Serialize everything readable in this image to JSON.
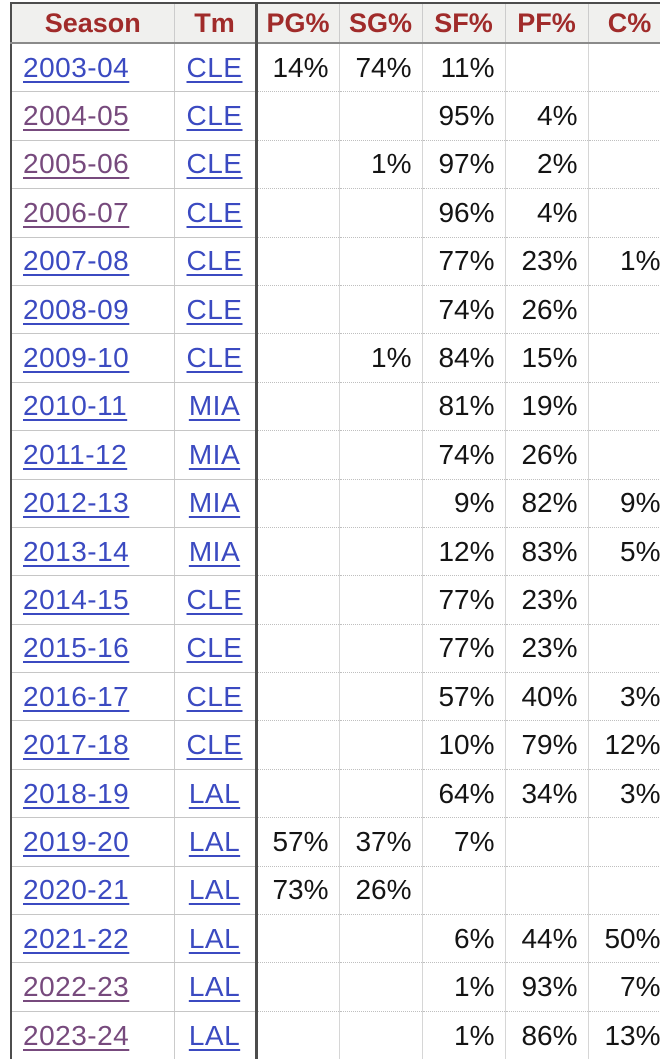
{
  "colors": {
    "header_text": "#a02b2a",
    "header_background": "#f0f0ee",
    "link_blue": "#3b4ac1",
    "link_visited_purple": "#774a7d",
    "thick_divider": "#4d4d4d",
    "stat_text": "#141414"
  },
  "table": {
    "columns": [
      {
        "key": "season",
        "label": "Season"
      },
      {
        "key": "team",
        "label": "Tm"
      },
      {
        "key": "pg",
        "label": "PG%"
      },
      {
        "key": "sg",
        "label": "SG%"
      },
      {
        "key": "sf",
        "label": "SF%"
      },
      {
        "key": "pf",
        "label": "PF%"
      },
      {
        "key": "c",
        "label": "C%"
      }
    ],
    "rows": [
      {
        "season": "2003-04",
        "visited": false,
        "team": "CLE",
        "pg": "14%",
        "sg": "74%",
        "sf": "11%",
        "pf": "",
        "c": ""
      },
      {
        "season": "2004-05",
        "visited": true,
        "team": "CLE",
        "pg": "",
        "sg": "",
        "sf": "95%",
        "pf": "4%",
        "c": ""
      },
      {
        "season": "2005-06",
        "visited": true,
        "team": "CLE",
        "pg": "",
        "sg": "1%",
        "sf": "97%",
        "pf": "2%",
        "c": ""
      },
      {
        "season": "2006-07",
        "visited": true,
        "team": "CLE",
        "pg": "",
        "sg": "",
        "sf": "96%",
        "pf": "4%",
        "c": ""
      },
      {
        "season": "2007-08",
        "visited": false,
        "team": "CLE",
        "pg": "",
        "sg": "",
        "sf": "77%",
        "pf": "23%",
        "c": "1%"
      },
      {
        "season": "2008-09",
        "visited": false,
        "team": "CLE",
        "pg": "",
        "sg": "",
        "sf": "74%",
        "pf": "26%",
        "c": ""
      },
      {
        "season": "2009-10",
        "visited": false,
        "team": "CLE",
        "pg": "",
        "sg": "1%",
        "sf": "84%",
        "pf": "15%",
        "c": ""
      },
      {
        "season": "2010-11",
        "visited": false,
        "team": "MIA",
        "pg": "",
        "sg": "",
        "sf": "81%",
        "pf": "19%",
        "c": ""
      },
      {
        "season": "2011-12",
        "visited": false,
        "team": "MIA",
        "pg": "",
        "sg": "",
        "sf": "74%",
        "pf": "26%",
        "c": ""
      },
      {
        "season": "2012-13",
        "visited": false,
        "team": "MIA",
        "pg": "",
        "sg": "",
        "sf": "9%",
        "pf": "82%",
        "c": "9%"
      },
      {
        "season": "2013-14",
        "visited": false,
        "team": "MIA",
        "pg": "",
        "sg": "",
        "sf": "12%",
        "pf": "83%",
        "c": "5%"
      },
      {
        "season": "2014-15",
        "visited": false,
        "team": "CLE",
        "pg": "",
        "sg": "",
        "sf": "77%",
        "pf": "23%",
        "c": ""
      },
      {
        "season": "2015-16",
        "visited": false,
        "team": "CLE",
        "pg": "",
        "sg": "",
        "sf": "77%",
        "pf": "23%",
        "c": ""
      },
      {
        "season": "2016-17",
        "visited": false,
        "team": "CLE",
        "pg": "",
        "sg": "",
        "sf": "57%",
        "pf": "40%",
        "c": "3%"
      },
      {
        "season": "2017-18",
        "visited": false,
        "team": "CLE",
        "pg": "",
        "sg": "",
        "sf": "10%",
        "pf": "79%",
        "c": "12%"
      },
      {
        "season": "2018-19",
        "visited": false,
        "team": "LAL",
        "pg": "",
        "sg": "",
        "sf": "64%",
        "pf": "34%",
        "c": "3%"
      },
      {
        "season": "2019-20",
        "visited": false,
        "team": "LAL",
        "pg": "57%",
        "sg": "37%",
        "sf": "7%",
        "pf": "",
        "c": ""
      },
      {
        "season": "2020-21",
        "visited": false,
        "team": "LAL",
        "pg": "73%",
        "sg": "26%",
        "sf": "",
        "pf": "",
        "c": ""
      },
      {
        "season": "2021-22",
        "visited": false,
        "team": "LAL",
        "pg": "",
        "sg": "",
        "sf": "6%",
        "pf": "44%",
        "c": "50%"
      },
      {
        "season": "2022-23",
        "visited": true,
        "team": "LAL",
        "pg": "",
        "sg": "",
        "sf": "1%",
        "pf": "93%",
        "c": "7%"
      },
      {
        "season": "2023-24",
        "visited": true,
        "team": "LAL",
        "pg": "",
        "sg": "",
        "sf": "1%",
        "pf": "86%",
        "c": "13%"
      }
    ]
  }
}
